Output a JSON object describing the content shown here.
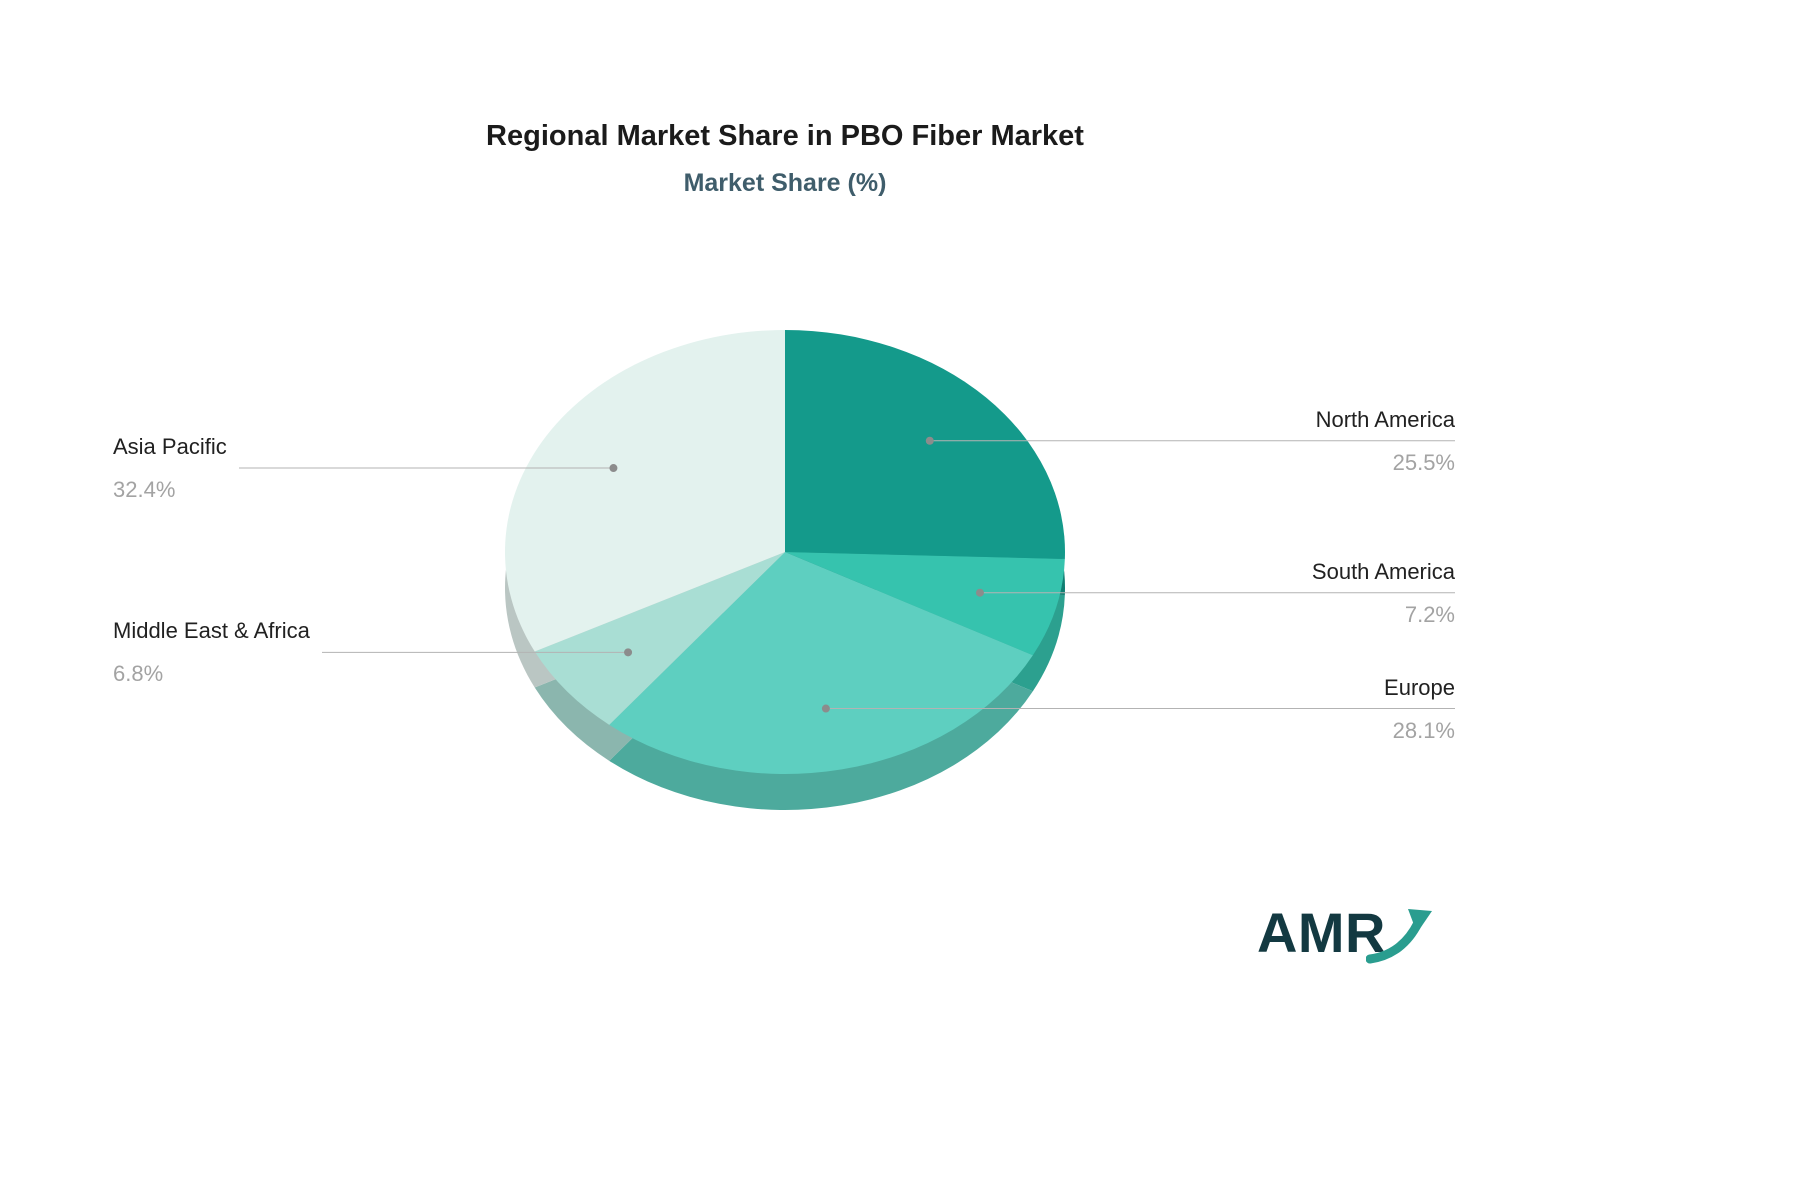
{
  "page": {
    "background": "#ffffff"
  },
  "chart_data": {
    "type": "pie",
    "title": "Regional Market Share in PBO Fiber Market",
    "subtitle": "Market Share (%)",
    "unit": "%",
    "labels": [
      "North America",
      "South America",
      "Europe",
      "Middle East & Africa",
      "Asia Pacific"
    ],
    "values": [
      25.5,
      7.2,
      28.1,
      6.8,
      32.4
    ],
    "value_texts": [
      "25.5%",
      "7.2%",
      "28.1%",
      "6.8%",
      "32.4%"
    ],
    "colors": [
      "#149a8b",
      "#36c3ae",
      "#5ecfc0",
      "#a9ded4",
      "#e3f2ee"
    ],
    "start_angle_deg": 0,
    "direction": "clockwise",
    "style": "3d-pie",
    "legend_position": "callouts-left-right"
  },
  "text_colors": {
    "title": "#1b1b1b",
    "subtitle": "#3f5d6b",
    "label": "#212121",
    "value": "#a3a3a3",
    "leader_line": "#b3b3b3",
    "leader_dot": "#8c8c8c"
  },
  "branding": {
    "logo_text": "AMR",
    "logo_color": "#133941",
    "arrow_color": "#2a9d8f"
  }
}
